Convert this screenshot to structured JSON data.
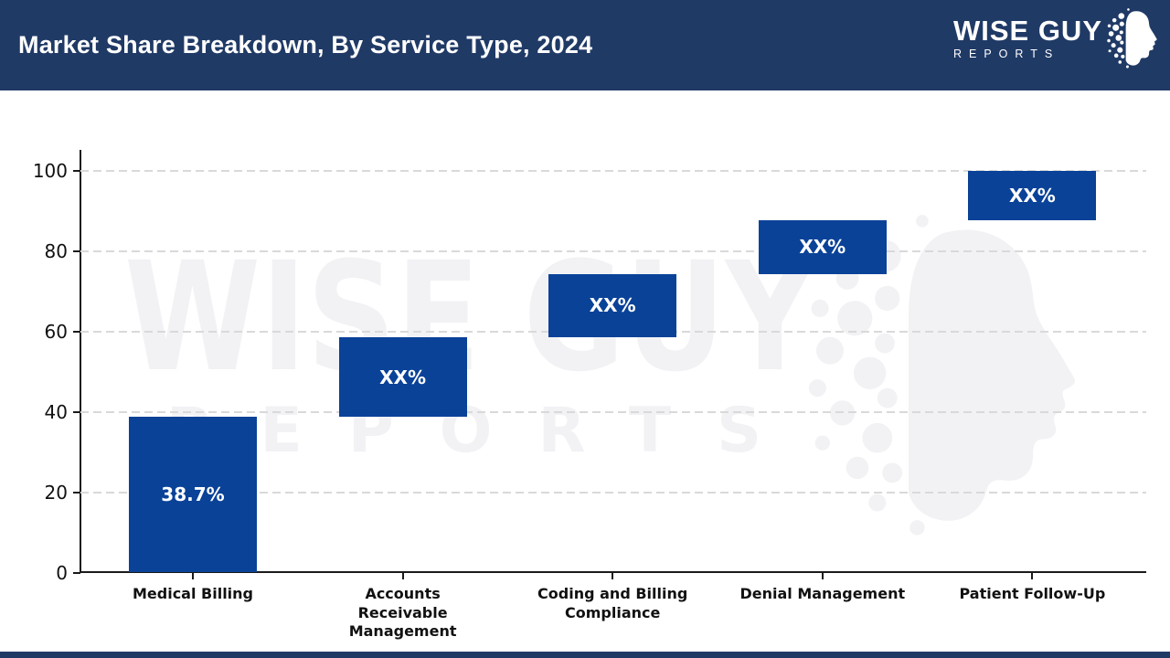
{
  "header": {
    "title": "Market Share Breakdown, By Service Type, 2024",
    "logo": {
      "name": "WISE GUY",
      "tagline": "REPORTS",
      "icon": "dotted-head-profile-icon"
    }
  },
  "watermark": {
    "line1": "WISE GUY",
    "line2": "REPORTS",
    "icon": "dotted-head-profile-watermark"
  },
  "colors": {
    "header_bg": "#203a66",
    "footer_bg": "#203a66",
    "bar_fill": "#0a4298",
    "bar_label_text": "#ffffff",
    "axis": "#1a1a1a",
    "gridline": "#d9d9d9",
    "watermark": "#f2f2f5",
    "background": "#ffffff"
  },
  "chart_data": {
    "type": "bar",
    "variant": "waterfall",
    "title": "Market Share Breakdown, By Service Type, 2024",
    "xlabel": "",
    "ylabel": "",
    "ylim": [
      0,
      105
    ],
    "yticks": [
      0,
      20,
      40,
      60,
      80,
      100
    ],
    "grid": "horizontal dashed",
    "legend": false,
    "categories": [
      "Medical Billing",
      "Accounts Receivable Management",
      "Coding and Billing Compliance",
      "Denial Management",
      "Patient Follow-Up"
    ],
    "category_label_lines": [
      [
        "Medical Billing"
      ],
      [
        "Accounts",
        "Receivable",
        "Management"
      ],
      [
        "Coding and Billing",
        "Compliance"
      ],
      [
        "Denial Management"
      ],
      [
        "Patient Follow-Up"
      ]
    ],
    "bars": [
      {
        "category": "Medical Billing",
        "start": 0,
        "end": 38.7,
        "value": 38.7,
        "label": "38.7%"
      },
      {
        "category": "Accounts Receivable Management",
        "start": 38.7,
        "end": 58.5,
        "value": 19.8,
        "label": "XX%"
      },
      {
        "category": "Coding and Billing Compliance",
        "start": 58.5,
        "end": 74.3,
        "value": 15.8,
        "label": "XX%"
      },
      {
        "category": "Denial Management",
        "start": 74.3,
        "end": 87.7,
        "value": 13.4,
        "label": "XX%"
      },
      {
        "category": "Patient Follow-Up",
        "start": 87.7,
        "end": 100,
        "value": 12.3,
        "label": "XX%"
      }
    ]
  }
}
